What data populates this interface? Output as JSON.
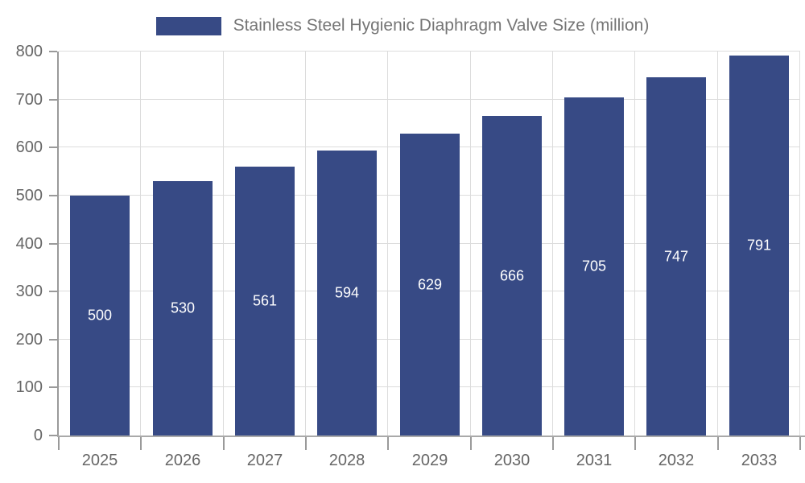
{
  "chart_data": {
    "type": "bar",
    "title": "Stainless Steel Hygienic Diaphragm Valve Size (million)",
    "categories": [
      "2025",
      "2026",
      "2027",
      "2028",
      "2029",
      "2030",
      "2031",
      "2032",
      "2033"
    ],
    "values": [
      500,
      530,
      561,
      594,
      629,
      666,
      705,
      747,
      791
    ],
    "xlabel": "",
    "ylabel": "",
    "ylim": [
      0,
      800
    ],
    "y_ticks": [
      0,
      100,
      200,
      300,
      400,
      500,
      600,
      700,
      800
    ],
    "grid": true,
    "legend_position": "top-center",
    "bar_label_position": "inside-center"
  },
  "colors": {
    "bar": "#374a85",
    "bar_label": "#ffffff",
    "grid_line": "#dcdcdc",
    "axis_line": "#9a9a9a",
    "tick_text": "#666666",
    "title_text": "#757575",
    "background": "#ffffff"
  }
}
